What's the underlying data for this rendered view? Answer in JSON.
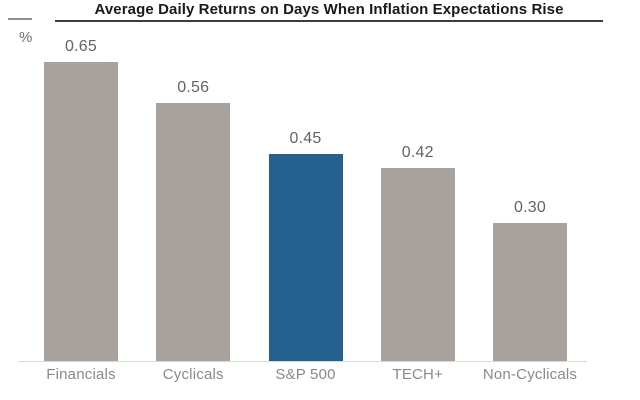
{
  "chart_data": {
    "type": "bar",
    "title": "Average Daily Returns on Days When Inflation Expectations Rise",
    "ylabel": "%",
    "xlabel": "",
    "categories": [
      "Financials",
      "Cyclicals",
      "S&P 500",
      "TECH+",
      "Non-Cyclicals"
    ],
    "values": [
      0.65,
      0.56,
      0.45,
      0.42,
      0.3
    ],
    "value_labels": [
      "0.65",
      "0.56",
      "0.45",
      "0.42",
      "0.30"
    ],
    "ylim": [
      0,
      0.75
    ],
    "grid": false,
    "legend": "none",
    "highlight": {
      "category": "S&P 500",
      "index": 2
    },
    "colors": {
      "bar_default": "#a9a29c",
      "bar_highlight": "#25618f",
      "value_label": "#636363",
      "category_label": "#8a8a8a",
      "baseline": "#d9d9d9",
      "title": "#1a1a1a"
    }
  }
}
